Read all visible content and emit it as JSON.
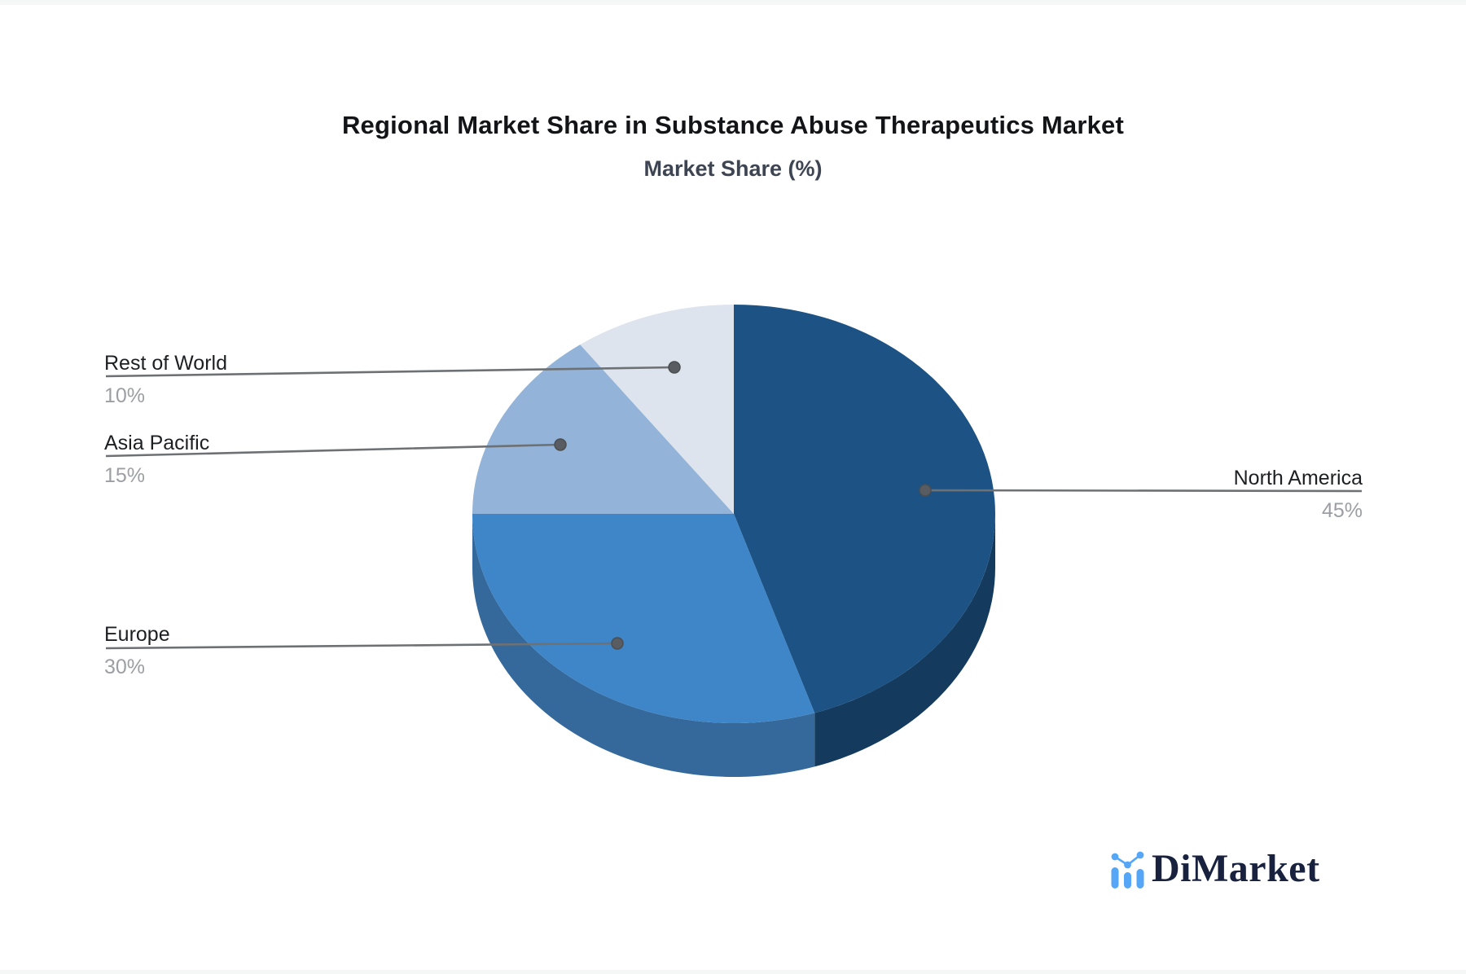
{
  "title": "Regional Market Share in Substance Abuse Therapeutics Market",
  "subtitle": "Market Share (%)",
  "brand": {
    "name": "DiMarket",
    "icon": "bar-chart-sparkline-icon",
    "text_color": "#18223e",
    "icon_color": "#55a6f7"
  },
  "chart_data": {
    "type": "pie",
    "style": "3d",
    "title": "Regional Market Share in Substance Abuse Therapeutics Market",
    "subtitle": "Market Share (%)",
    "unit": "%",
    "legend": "none",
    "start_angle_deg": 0,
    "direction": "clockwise",
    "slices": [
      {
        "name": "North America",
        "value": 45,
        "value_label": "45%",
        "color": "#1d5284",
        "side_color": "#143a5e",
        "label_side": "right"
      },
      {
        "name": "Europe",
        "value": 30,
        "value_label": "30%",
        "color": "#3e86c7",
        "side_color": "#35699b",
        "label_side": "left"
      },
      {
        "name": "Asia Pacific",
        "value": 15,
        "value_label": "15%",
        "color": "#93b4d8",
        "side_color": "#6d8cb0",
        "label_side": "left"
      },
      {
        "name": "Rest of World",
        "value": 10,
        "value_label": "10%",
        "color": "#dde4ee",
        "side_color": "#b4bdca",
        "label_side": "left"
      }
    ],
    "label_text_color": "#1d2023",
    "label_value_color": "#9b9fa3",
    "leader_line_color": "#6e7174",
    "leader_dot_color": "#595d61"
  }
}
